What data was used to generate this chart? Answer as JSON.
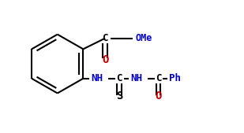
{
  "bg_color": "#ffffff",
  "line_color": "#000000",
  "text_color_blue": "#0000cc",
  "text_color_red": "#cc0000",
  "line_width": 1.5,
  "figsize": [
    3.09,
    1.69
  ],
  "dpi": 100,
  "xlim": [
    0,
    309
  ],
  "ylim": [
    0,
    169
  ]
}
